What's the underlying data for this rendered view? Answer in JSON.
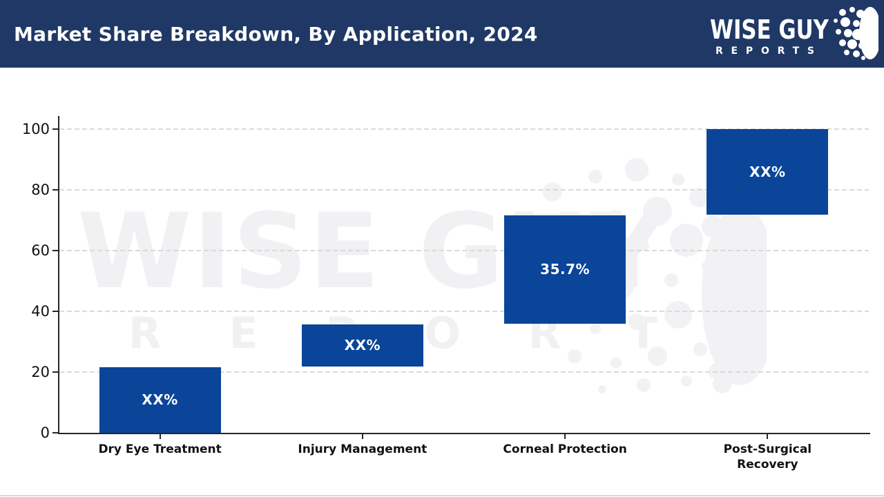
{
  "header": {
    "title": "Market Share Breakdown, By Application, 2024",
    "logo_line1": "WISE GUY",
    "logo_line2": "R E P O R T S",
    "bg_color": "#1f3866"
  },
  "watermark": {
    "line1": "WISE GUY",
    "line2": "R E P O R T S"
  },
  "chart_data": {
    "type": "bar",
    "variant": "floating-waterfall",
    "title": "Market Share Breakdown, By Application, 2024",
    "categories": [
      "Dry Eye Treatment",
      "Injury Management",
      "Corneal Protection",
      "Post-Surgical Recovery"
    ],
    "bars": [
      {
        "category": "Dry Eye Treatment",
        "start": 0,
        "end": 21.6,
        "label": "XX%"
      },
      {
        "category": "Injury Management",
        "start": 21.8,
        "end": 35.7,
        "label": "XX%"
      },
      {
        "category": "Corneal Protection",
        "start": 35.9,
        "end": 71.6,
        "label": "35.7%"
      },
      {
        "category": "Post-Surgical Recovery",
        "start": 71.8,
        "end": 100,
        "label": "XX%"
      }
    ],
    "ylim": [
      0,
      100
    ],
    "yticks": [
      0,
      20,
      40,
      60,
      80,
      100
    ],
    "grid": "horizontal-dashed",
    "legend": "none",
    "bar_color": "#0a4599",
    "bar_label_color": "#ffffff",
    "axis_color": "#262626",
    "grid_color": "#d9d9d9",
    "header_color": "#1f3866",
    "watermark_color": "#f1f1f3"
  }
}
